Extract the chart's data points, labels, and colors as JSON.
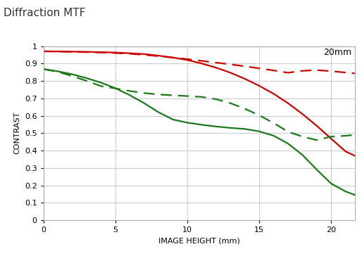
{
  "title": "Diffraction MTF",
  "annotation": "20mm",
  "xlabel": "IMAGE HEIGHT (mm)",
  "ylabel": "CONTRAST",
  "xlim": [
    0,
    21.64
  ],
  "ylim": [
    0,
    1.0
  ],
  "xticks": [
    0,
    5,
    10,
    15,
    20
  ],
  "yticks": [
    0,
    0.1,
    0.2,
    0.3,
    0.4,
    0.5,
    0.6,
    0.7,
    0.8,
    0.9,
    1
  ],
  "background_color": "#ffffff",
  "grid_color": "#cccccc",
  "red_solid_x": [
    0,
    1,
    2,
    3,
    4,
    5,
    6,
    7,
    8,
    9,
    10,
    11,
    12,
    13,
    14,
    15,
    16,
    17,
    18,
    19,
    20,
    21,
    21.64
  ],
  "red_solid_y": [
    0.97,
    0.969,
    0.968,
    0.967,
    0.965,
    0.963,
    0.959,
    0.954,
    0.945,
    0.934,
    0.92,
    0.9,
    0.876,
    0.847,
    0.812,
    0.772,
    0.726,
    0.672,
    0.61,
    0.542,
    0.468,
    0.395,
    0.37
  ],
  "red_dashed_x": [
    0,
    1,
    2,
    3,
    4,
    5,
    6,
    7,
    8,
    9,
    10,
    11,
    12,
    13,
    14,
    15,
    16,
    17,
    18,
    19,
    20,
    21,
    21.64
  ],
  "red_dashed_y": [
    0.97,
    0.969,
    0.967,
    0.965,
    0.963,
    0.96,
    0.956,
    0.95,
    0.942,
    0.934,
    0.925,
    0.915,
    0.905,
    0.895,
    0.884,
    0.872,
    0.86,
    0.847,
    0.858,
    0.862,
    0.856,
    0.848,
    0.843
  ],
  "green_solid_x": [
    0,
    1,
    2,
    3,
    4,
    5,
    6,
    7,
    8,
    9,
    10,
    11,
    12,
    13,
    14,
    15,
    16,
    17,
    18,
    19,
    20,
    21,
    21.64
  ],
  "green_solid_y": [
    0.868,
    0.855,
    0.838,
    0.816,
    0.79,
    0.758,
    0.718,
    0.672,
    0.62,
    0.578,
    0.56,
    0.548,
    0.538,
    0.53,
    0.524,
    0.51,
    0.485,
    0.44,
    0.375,
    0.29,
    0.21,
    0.165,
    0.145
  ],
  "green_dashed_x": [
    0,
    1,
    2,
    3,
    4,
    5,
    6,
    7,
    8,
    9,
    10,
    11,
    12,
    13,
    14,
    15,
    16,
    17,
    18,
    19,
    20,
    21,
    21.64
  ],
  "green_dashed_y": [
    0.868,
    0.852,
    0.828,
    0.8,
    0.77,
    0.757,
    0.742,
    0.73,
    0.722,
    0.717,
    0.713,
    0.708,
    0.695,
    0.672,
    0.64,
    0.602,
    0.558,
    0.508,
    0.48,
    0.46,
    0.48,
    0.485,
    0.49
  ],
  "red_color": "#cc0000",
  "green_color": "#1a7a1a",
  "linewidth": 1.6,
  "title_fontsize": 11,
  "label_fontsize": 8,
  "tick_fontsize": 8,
  "annot_fontsize": 9
}
